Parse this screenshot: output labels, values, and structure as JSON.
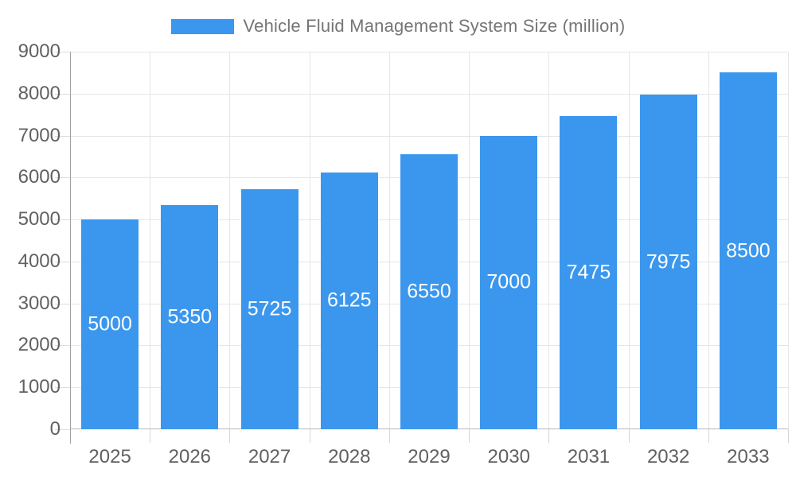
{
  "legend": {
    "label": "Vehicle Fluid Management System Size (million)"
  },
  "chart_data": {
    "type": "bar",
    "title": "Vehicle Fluid Management System Size (million)",
    "categories": [
      "2025",
      "2026",
      "2027",
      "2028",
      "2029",
      "2030",
      "2031",
      "2032",
      "2033"
    ],
    "series": [
      {
        "name": "Vehicle Fluid Management System Size (million)",
        "values": [
          5000,
          5350,
          5725,
          6125,
          6550,
          7000,
          7475,
          7975,
          8500
        ]
      }
    ],
    "data_labels": [
      "5000",
      "5350",
      "5725",
      "6125",
      "6550",
      "7000",
      "7475",
      "7975",
      "8500"
    ],
    "xlabel": "",
    "ylabel": "",
    "ylim": [
      0,
      9000
    ],
    "ytick_step": 1000,
    "ytick_labels": [
      "0",
      "1000",
      "2000",
      "3000",
      "4000",
      "5000",
      "6000",
      "7000",
      "8000",
      "9000"
    ],
    "grid": true,
    "legend_position": "top"
  },
  "colors": {
    "bar": "#3b97ed",
    "bar_label": "#ffffff",
    "legend_text": "#757575",
    "axis_text": "#616161",
    "gridline": "#e6e6e6",
    "axis_line": "#a0a0a0",
    "background": "#ffffff"
  }
}
